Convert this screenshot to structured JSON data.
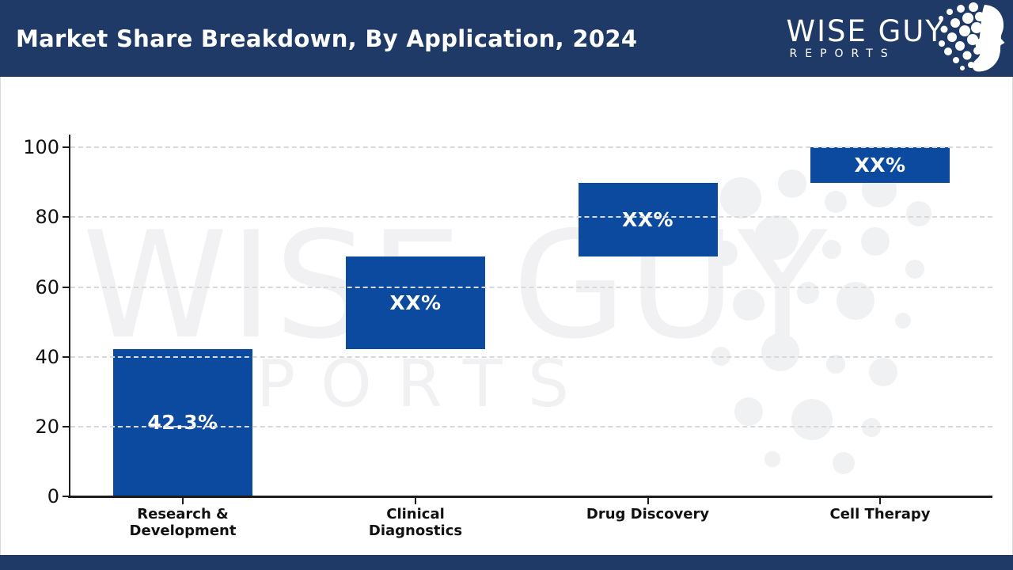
{
  "header": {
    "title": "Market Share Breakdown, By Application, 2024",
    "logo": {
      "brand_line1": "WISE GUY",
      "brand_line2": "REPORTS"
    }
  },
  "watermark": {
    "line1": "WISE GUY",
    "line2": "REPORTS"
  },
  "colors": {
    "header_bg": "#1f3a67",
    "bar_fill": "#0b4a9e",
    "bar_label": "#ffffff",
    "gridline": "#d9d9d9",
    "axis": "#1c1c1c",
    "tick_text": "#111111",
    "watermark": "#f1f1f3"
  },
  "chart_data": {
    "type": "bar",
    "subtype": "waterfall",
    "title": "Market Share Breakdown, By Application, 2024",
    "xlabel": "",
    "ylabel": "",
    "categories": [
      [
        "Research &",
        "Development"
      ],
      [
        "Clinical",
        "Diagnostics"
      ],
      [
        "Drug Discovery"
      ],
      [
        "Cell Therapy"
      ]
    ],
    "series": [
      {
        "name": "Market Share (%)",
        "segments": [
          {
            "category": "Research & Development",
            "start": 0,
            "end": 42.3,
            "label": "42.3%"
          },
          {
            "category": "Clinical Diagnostics",
            "start": 42.3,
            "end": 68.7,
            "label": "XX%"
          },
          {
            "category": "Drug Discovery",
            "start": 68.7,
            "end": 89.8,
            "label": "XX%"
          },
          {
            "category": "Cell Therapy",
            "start": 89.8,
            "end": 100,
            "label": "XX%"
          }
        ]
      }
    ],
    "ylim": [
      0,
      104
    ],
    "yticks": [
      0,
      20,
      40,
      60,
      80,
      100
    ],
    "grid": "horizontal-dashed",
    "legend": "none"
  }
}
